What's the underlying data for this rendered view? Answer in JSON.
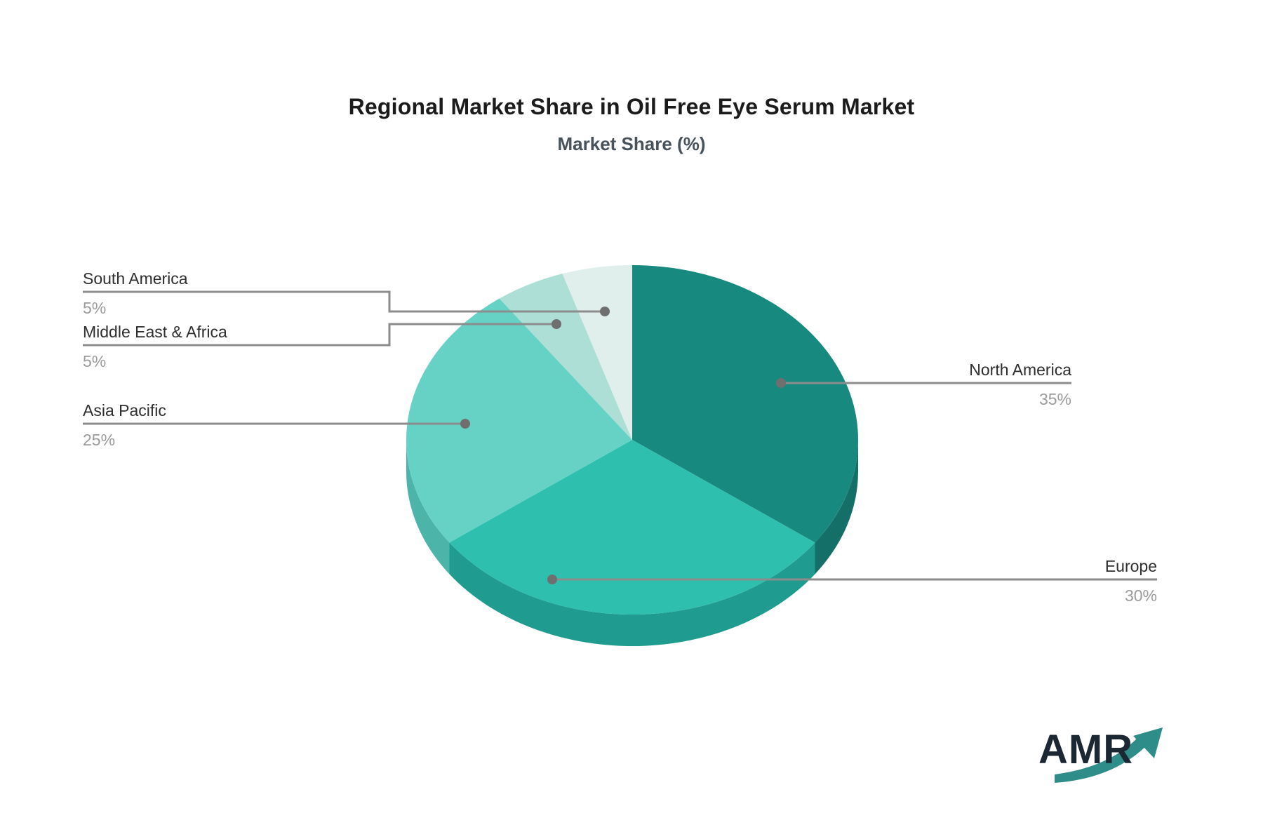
{
  "chart_data": {
    "type": "pie",
    "title": "Regional Market Share in Oil Free Eye Serum Market",
    "subtitle": "Market Share (%)",
    "unit": "%",
    "start_angle_deg": 0,
    "direction": "clockwise",
    "legend_position": "callout-labels",
    "effect": "3d-depth",
    "categories": [
      "North America",
      "Europe",
      "Asia Pacific",
      "Middle East & Africa",
      "South America"
    ],
    "values": [
      35,
      30,
      25,
      5,
      5
    ],
    "colors": [
      "#17897f",
      "#2ebfae",
      "#66d2c6",
      "#addfd7",
      "#e1efec"
    ],
    "side_colors": [
      "#136f67",
      "#1f9c8f",
      "#4cb4a8",
      "#8fc9bf",
      "#c5ddd8"
    ],
    "labels": [
      {
        "name": "North America",
        "value": "35%"
      },
      {
        "name": "Europe",
        "value": "30%"
      },
      {
        "name": "Asia Pacific",
        "value": "25%"
      },
      {
        "name": "Middle East & Africa",
        "value": "5%"
      },
      {
        "name": "South America",
        "value": "5%"
      }
    ],
    "leader_line_color": "#8c8c8c",
    "leader_dot_color": "#6f6f6f"
  },
  "logo": {
    "text": "AMR",
    "swoosh_color": "#2f8d89"
  }
}
